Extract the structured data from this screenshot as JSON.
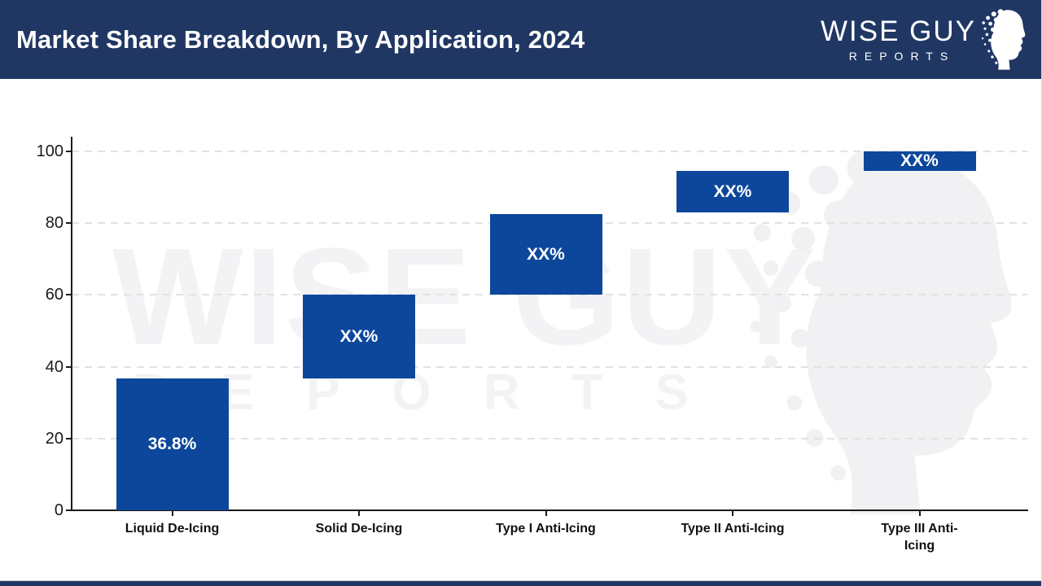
{
  "header": {
    "title": "Market Share Breakdown, By Application, 2024",
    "bg_color": "#203764",
    "logo": {
      "line1": "WISE GUY",
      "line2": "REPORTS"
    }
  },
  "watermark": {
    "line1": "WISE GUY",
    "line2": "REPORTS"
  },
  "chart_data": {
    "type": "bar",
    "subtype": "waterfall-breakdown",
    "title": "Market Share Breakdown, By Application, 2024",
    "xlabel": "",
    "ylabel": "",
    "ylim": [
      0,
      105
    ],
    "y_ticks": [
      0,
      20,
      40,
      60,
      80,
      100
    ],
    "grid": "horizontal-dashed",
    "legend": "none",
    "bar_color": "#0c479c",
    "value_label_color": "#ffffff",
    "categories": [
      "Liquid De-Icing",
      "Solid De-Icing",
      "Type I Anti-Icing",
      "Type II Anti-Icing",
      "Type III Anti-Icing"
    ],
    "segments": [
      {
        "category": "Liquid De-Icing",
        "tick_label_lines": [
          "Liquid De-Icing"
        ],
        "start": 0,
        "end": 36.8,
        "value_label": "36.8%"
      },
      {
        "category": "Solid De-Icing",
        "tick_label_lines": [
          "Solid De-Icing"
        ],
        "start": 36.8,
        "end": 60,
        "value_label": "XX%"
      },
      {
        "category": "Type I Anti-Icing",
        "tick_label_lines": [
          "Type I Anti-Icing"
        ],
        "start": 60,
        "end": 82.5,
        "value_label": "XX%"
      },
      {
        "category": "Type II Anti-Icing",
        "tick_label_lines": [
          "Type II Anti-Icing"
        ],
        "start": 83,
        "end": 94.5,
        "value_label": "XX%"
      },
      {
        "category": "Type III Anti-Icing",
        "tick_label_lines": [
          "Type III Anti-",
          "Icing"
        ],
        "start": 94.5,
        "end": 100,
        "value_label": "XX%"
      }
    ]
  }
}
